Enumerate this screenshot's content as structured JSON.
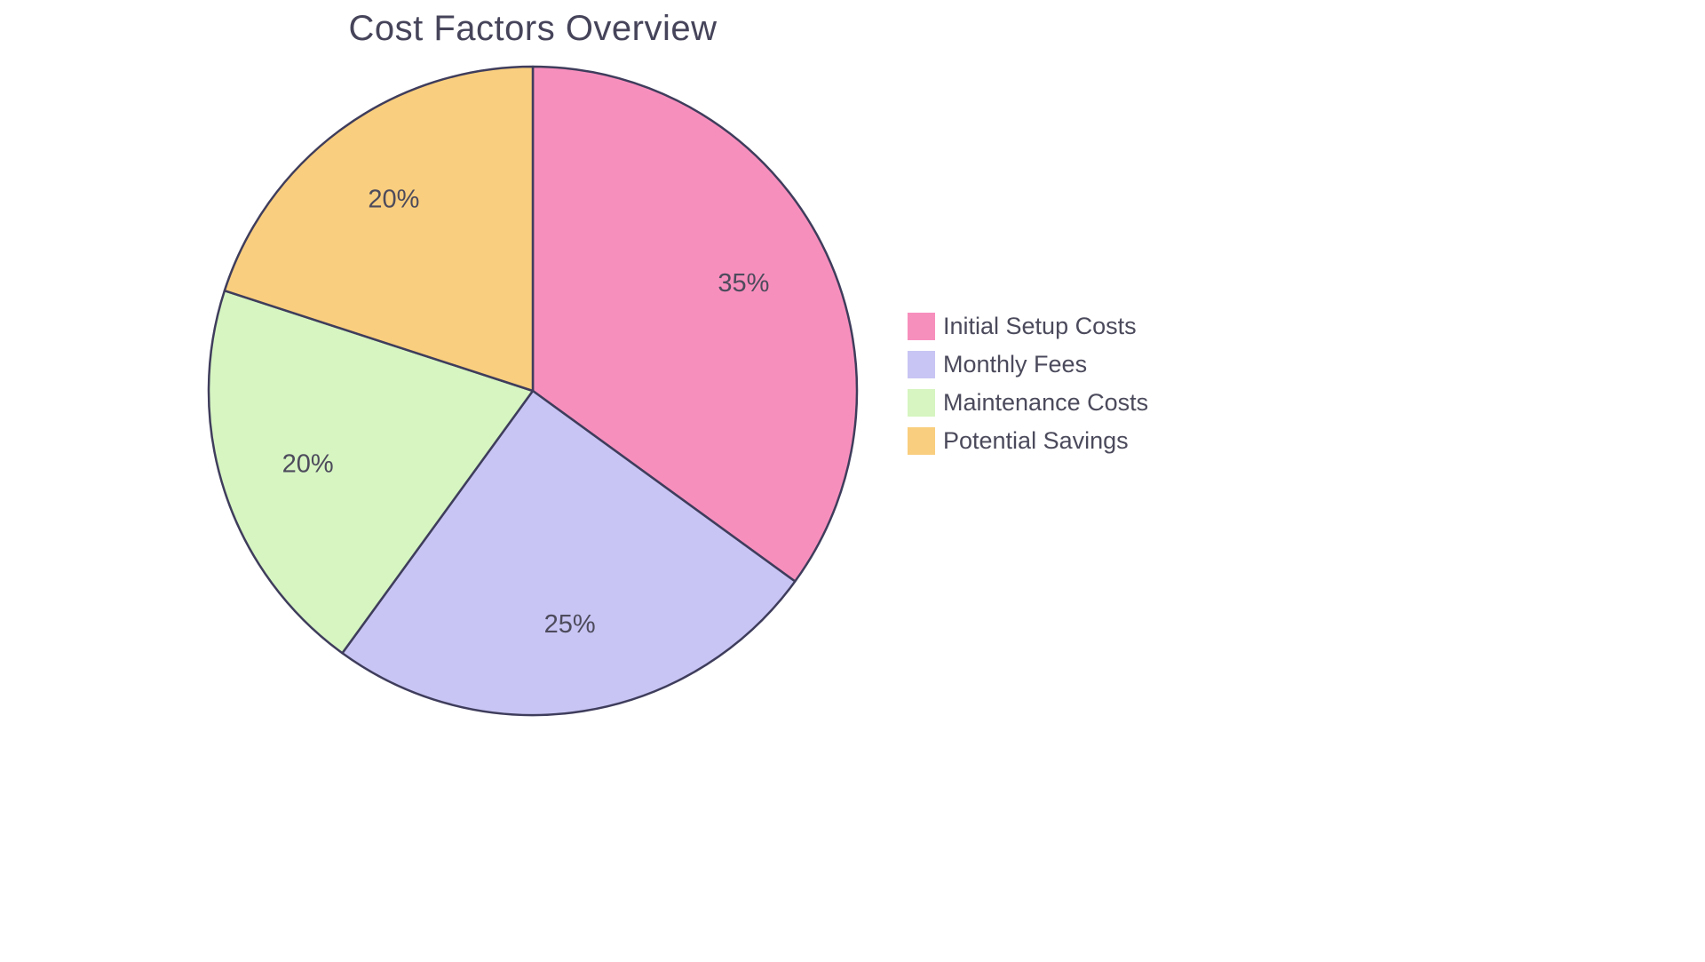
{
  "chart_data": {
    "type": "pie",
    "title": "Cost Factors Overview",
    "labels": [
      "Initial Setup Costs",
      "Monthly Fees",
      "Maintenance Costs",
      "Potential Savings"
    ],
    "values": [
      35,
      25,
      20,
      20
    ],
    "slice_labels": [
      "35%",
      "25%",
      "20%",
      "20%"
    ],
    "colors": [
      "#F78FBD",
      "#C8C5F4",
      "#D6F5C1",
      "#F9CE7E"
    ],
    "stroke_color": "#3F3D5C",
    "label_color": "#4D4B5C",
    "title_color": "#45445A",
    "start_angle_deg": 0,
    "direction": "clockwise",
    "legend_position": "right",
    "background": "#FFFFFF"
  }
}
